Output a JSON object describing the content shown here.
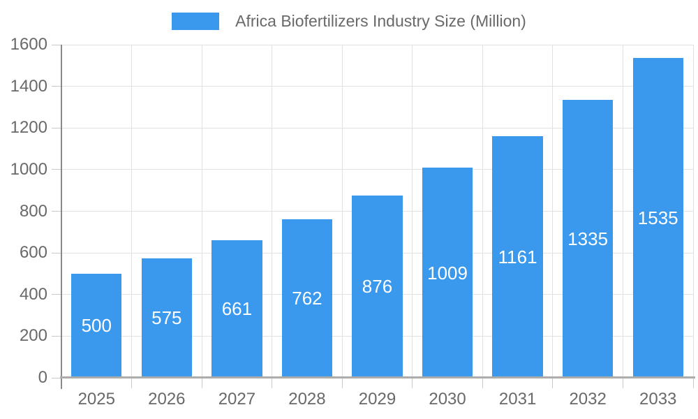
{
  "chart_data": {
    "type": "bar",
    "title": "Africa Biofertilizers Industry Size (Million)",
    "legend": {
      "position": "top",
      "label": "Africa Biofertilizers Industry Size (Million)"
    },
    "categories": [
      "2025",
      "2026",
      "2027",
      "2028",
      "2029",
      "2030",
      "2031",
      "2032",
      "2033"
    ],
    "series": [
      {
        "name": "Africa Biofertilizers Industry Size (Million)",
        "values": [
          500,
          575,
          661,
          762,
          876,
          1009,
          1161,
          1335,
          1535
        ]
      }
    ],
    "xlabel": "",
    "ylabel": "",
    "ylim": [
      0,
      1600
    ],
    "yticks": [
      0,
      200,
      400,
      600,
      800,
      1000,
      1200,
      1400,
      1600
    ],
    "grid": true,
    "bar_value_labels": "inside-center",
    "colors": {
      "bar": "#3a99ec",
      "bar_label": "#ffffff",
      "axis_text": "#696969",
      "gridline": "#e1e1e1",
      "tick": "#c9c9c9",
      "x_axis_line": "#acacac",
      "y_axis_line": "#8a8a8a"
    }
  }
}
